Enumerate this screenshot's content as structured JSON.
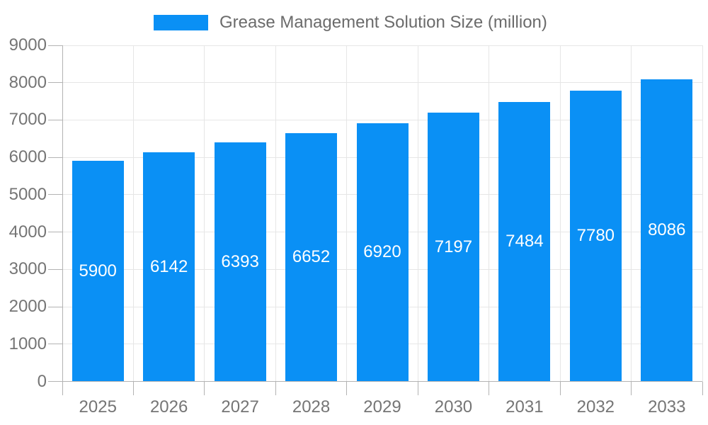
{
  "chart_data": {
    "type": "bar",
    "title": "Grease Management Solution Size (million)",
    "legend_position": "top",
    "categories": [
      "2025",
      "2026",
      "2027",
      "2028",
      "2029",
      "2030",
      "2031",
      "2032",
      "2033"
    ],
    "values": [
      5900,
      6142,
      6393,
      6652,
      6920,
      7197,
      7484,
      7780,
      8086
    ],
    "xlabel": "",
    "ylabel": "",
    "ylim": [
      0,
      9000
    ],
    "ytick_step": 1000,
    "grid": true,
    "value_labels": "inside-center",
    "colors": {
      "bar": "#0a90f5",
      "grid": "#e6e6e6",
      "axis": "#b3b3b3",
      "axis_label": "#757575",
      "legend_label": "#6b6b6b",
      "value_label": "#ffffff",
      "background": "#ffffff"
    }
  }
}
